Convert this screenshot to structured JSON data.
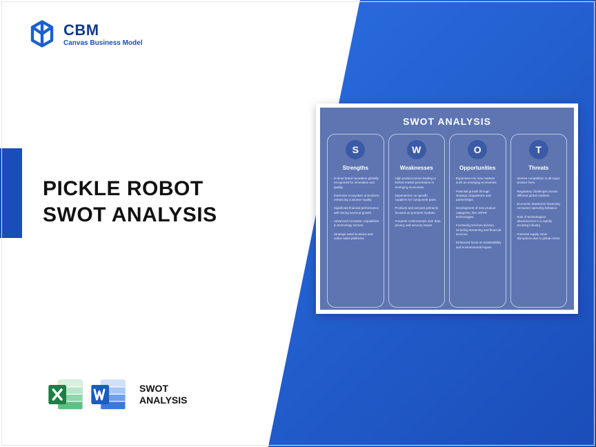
{
  "brand": {
    "title": "CBM",
    "subtitle": "Canvas Business Model",
    "logo_color": "#1a5fd0"
  },
  "colors": {
    "gradient_start": "#2a6de0",
    "gradient_end": "#1a4db8",
    "accent": "#1a4db8",
    "card_bg": "#5e75b2",
    "circle_bg": "#3b5aa6"
  },
  "main_title_line1": "PICKLE ROBOT",
  "main_title_line2": "SWOT ANALYSIS",
  "file_label_line1": "SWOT",
  "file_label_line2": "ANALYSIS",
  "icons": {
    "excel_color": "#1e7e44",
    "word_color": "#1b5cbe"
  },
  "swot": {
    "title": "SWOT ANALYSIS",
    "columns": [
      {
        "letter": "S",
        "heading": "Strengths",
        "items": [
          "Robust brand reputation globally recognized for innovation and quality.",
          "Extensive ecosystem of products enhancing customer loyalty.",
          "Significant financial performance with strong revenue growth.",
          "Advanced innovation capabilities in technology sectors.",
          "Strategic retail locations and online sales platforms."
        ]
      },
      {
        "letter": "W",
        "heading": "Weaknesses",
        "items": [
          "High product prices leading to limited market penetration in emerging economies.",
          "Dependence on specific suppliers for component parts.",
          "Products and services primarily focused on premium markets.",
          "Frequent controversies over data privacy and security issues."
        ]
      },
      {
        "letter": "O",
        "heading": "Opportunities",
        "items": [
          "Expansion into new markets such as emerging economies.",
          "Potential growth through strategic acquisitions and partnerships.",
          "Development of new product categories, like AR/VR technologies.",
          "Increasing services division, including streaming and financial services.",
          "Enhanced focus on sustainability and environmental impact."
        ]
      },
      {
        "letter": "T",
        "heading": "Threats",
        "items": [
          "Intense competition in all major product lines.",
          "Regulatory challenges across different global markets.",
          "Economic downturns impacting consumer spending behavior.",
          "Risk of technological obsolescence in a rapidly evolving industry.",
          "Potential supply chain disruptions due to global crises."
        ]
      }
    ]
  }
}
